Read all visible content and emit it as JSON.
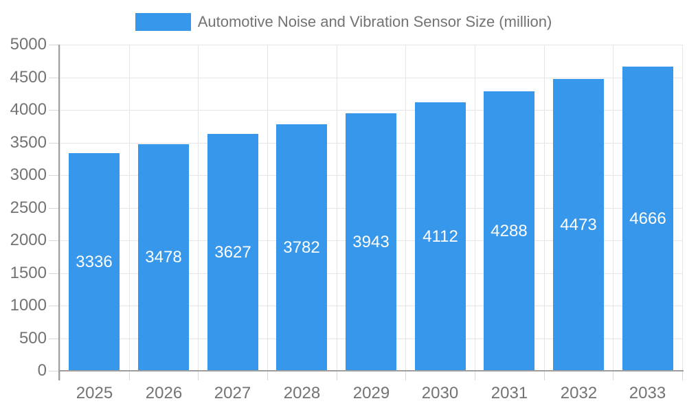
{
  "chart_data": {
    "type": "bar",
    "title": "Automotive Noise and Vibration Sensor Size (million)",
    "xlabel": "",
    "ylabel": "",
    "categories": [
      "2025",
      "2026",
      "2027",
      "2028",
      "2029",
      "2030",
      "2031",
      "2032",
      "2033"
    ],
    "values": [
      3336,
      3478,
      3627,
      3782,
      3943,
      4112,
      4288,
      4473,
      4666
    ],
    "ylim": [
      0,
      5000
    ],
    "y_tick_step": 500,
    "y_ticks": [
      0,
      500,
      1000,
      1500,
      2000,
      2500,
      3000,
      3500,
      4000,
      4500,
      5000
    ],
    "legend_position": "top",
    "grid": true,
    "colors": {
      "bar": "#3797EB",
      "bar_value_text": "#ffffff",
      "axis_line": "#9e9e9e",
      "gridline": "#e5e5e5",
      "tick": "#d6d6d6",
      "axis_text": "#737373",
      "background": "#ffffff"
    }
  }
}
